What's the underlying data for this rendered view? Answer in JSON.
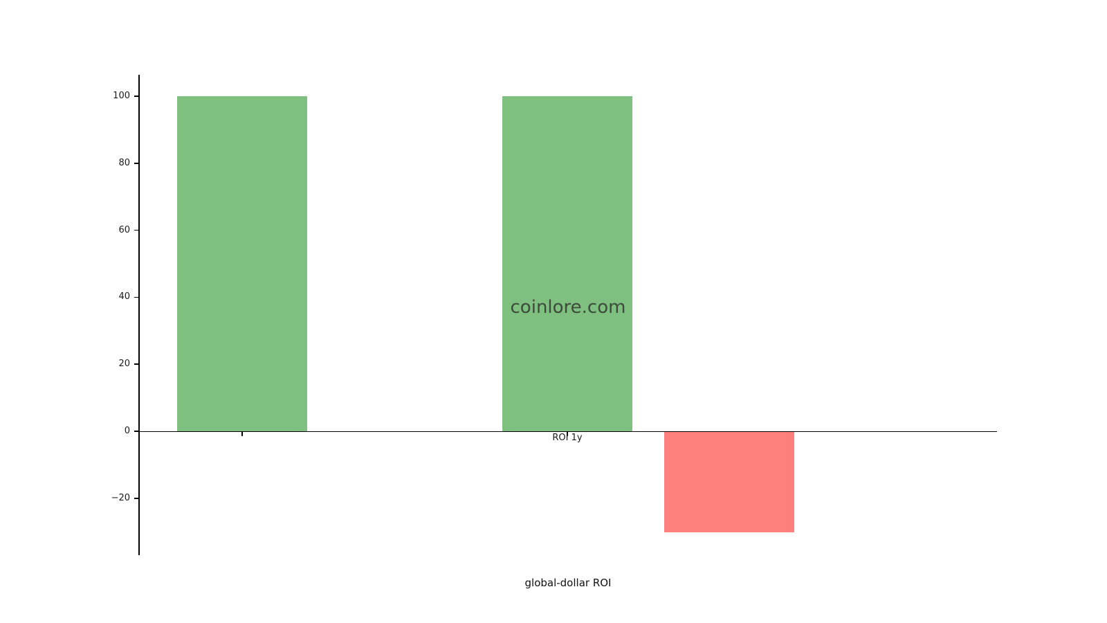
{
  "chart_data": {
    "type": "bar",
    "xlabel": "global-dollar ROI",
    "watermark": "coinlore.com",
    "bars": [
      {
        "category": "",
        "value": 100,
        "color": "#7fbf7f",
        "tick": true
      },
      {
        "category": "ROI 1y",
        "value": 100,
        "color": "#7fbf7f",
        "tick": true
      },
      {
        "category": "",
        "value": -30,
        "color": "#ff7f7f",
        "tick": false
      }
    ],
    "y_ticks": [
      {
        "label": "100",
        "value": 100
      },
      {
        "label": "80",
        "value": 80
      },
      {
        "label": "60",
        "value": 60
      },
      {
        "label": "40",
        "value": 40
      },
      {
        "label": "20",
        "value": 20
      },
      {
        "label": "0",
        "value": 0
      },
      {
        "label": "−20",
        "value": -20
      }
    ],
    "ylim": [
      -37,
      106.5
    ],
    "grid": false,
    "legend_position": "none",
    "colors": {
      "positive": "#7fbf7f",
      "negative": "#ff7f7f",
      "axis": "#000000",
      "tick_text": "#1a1a1a",
      "watermark_text": "#3c4b3c",
      "background": "#ffffff"
    }
  }
}
